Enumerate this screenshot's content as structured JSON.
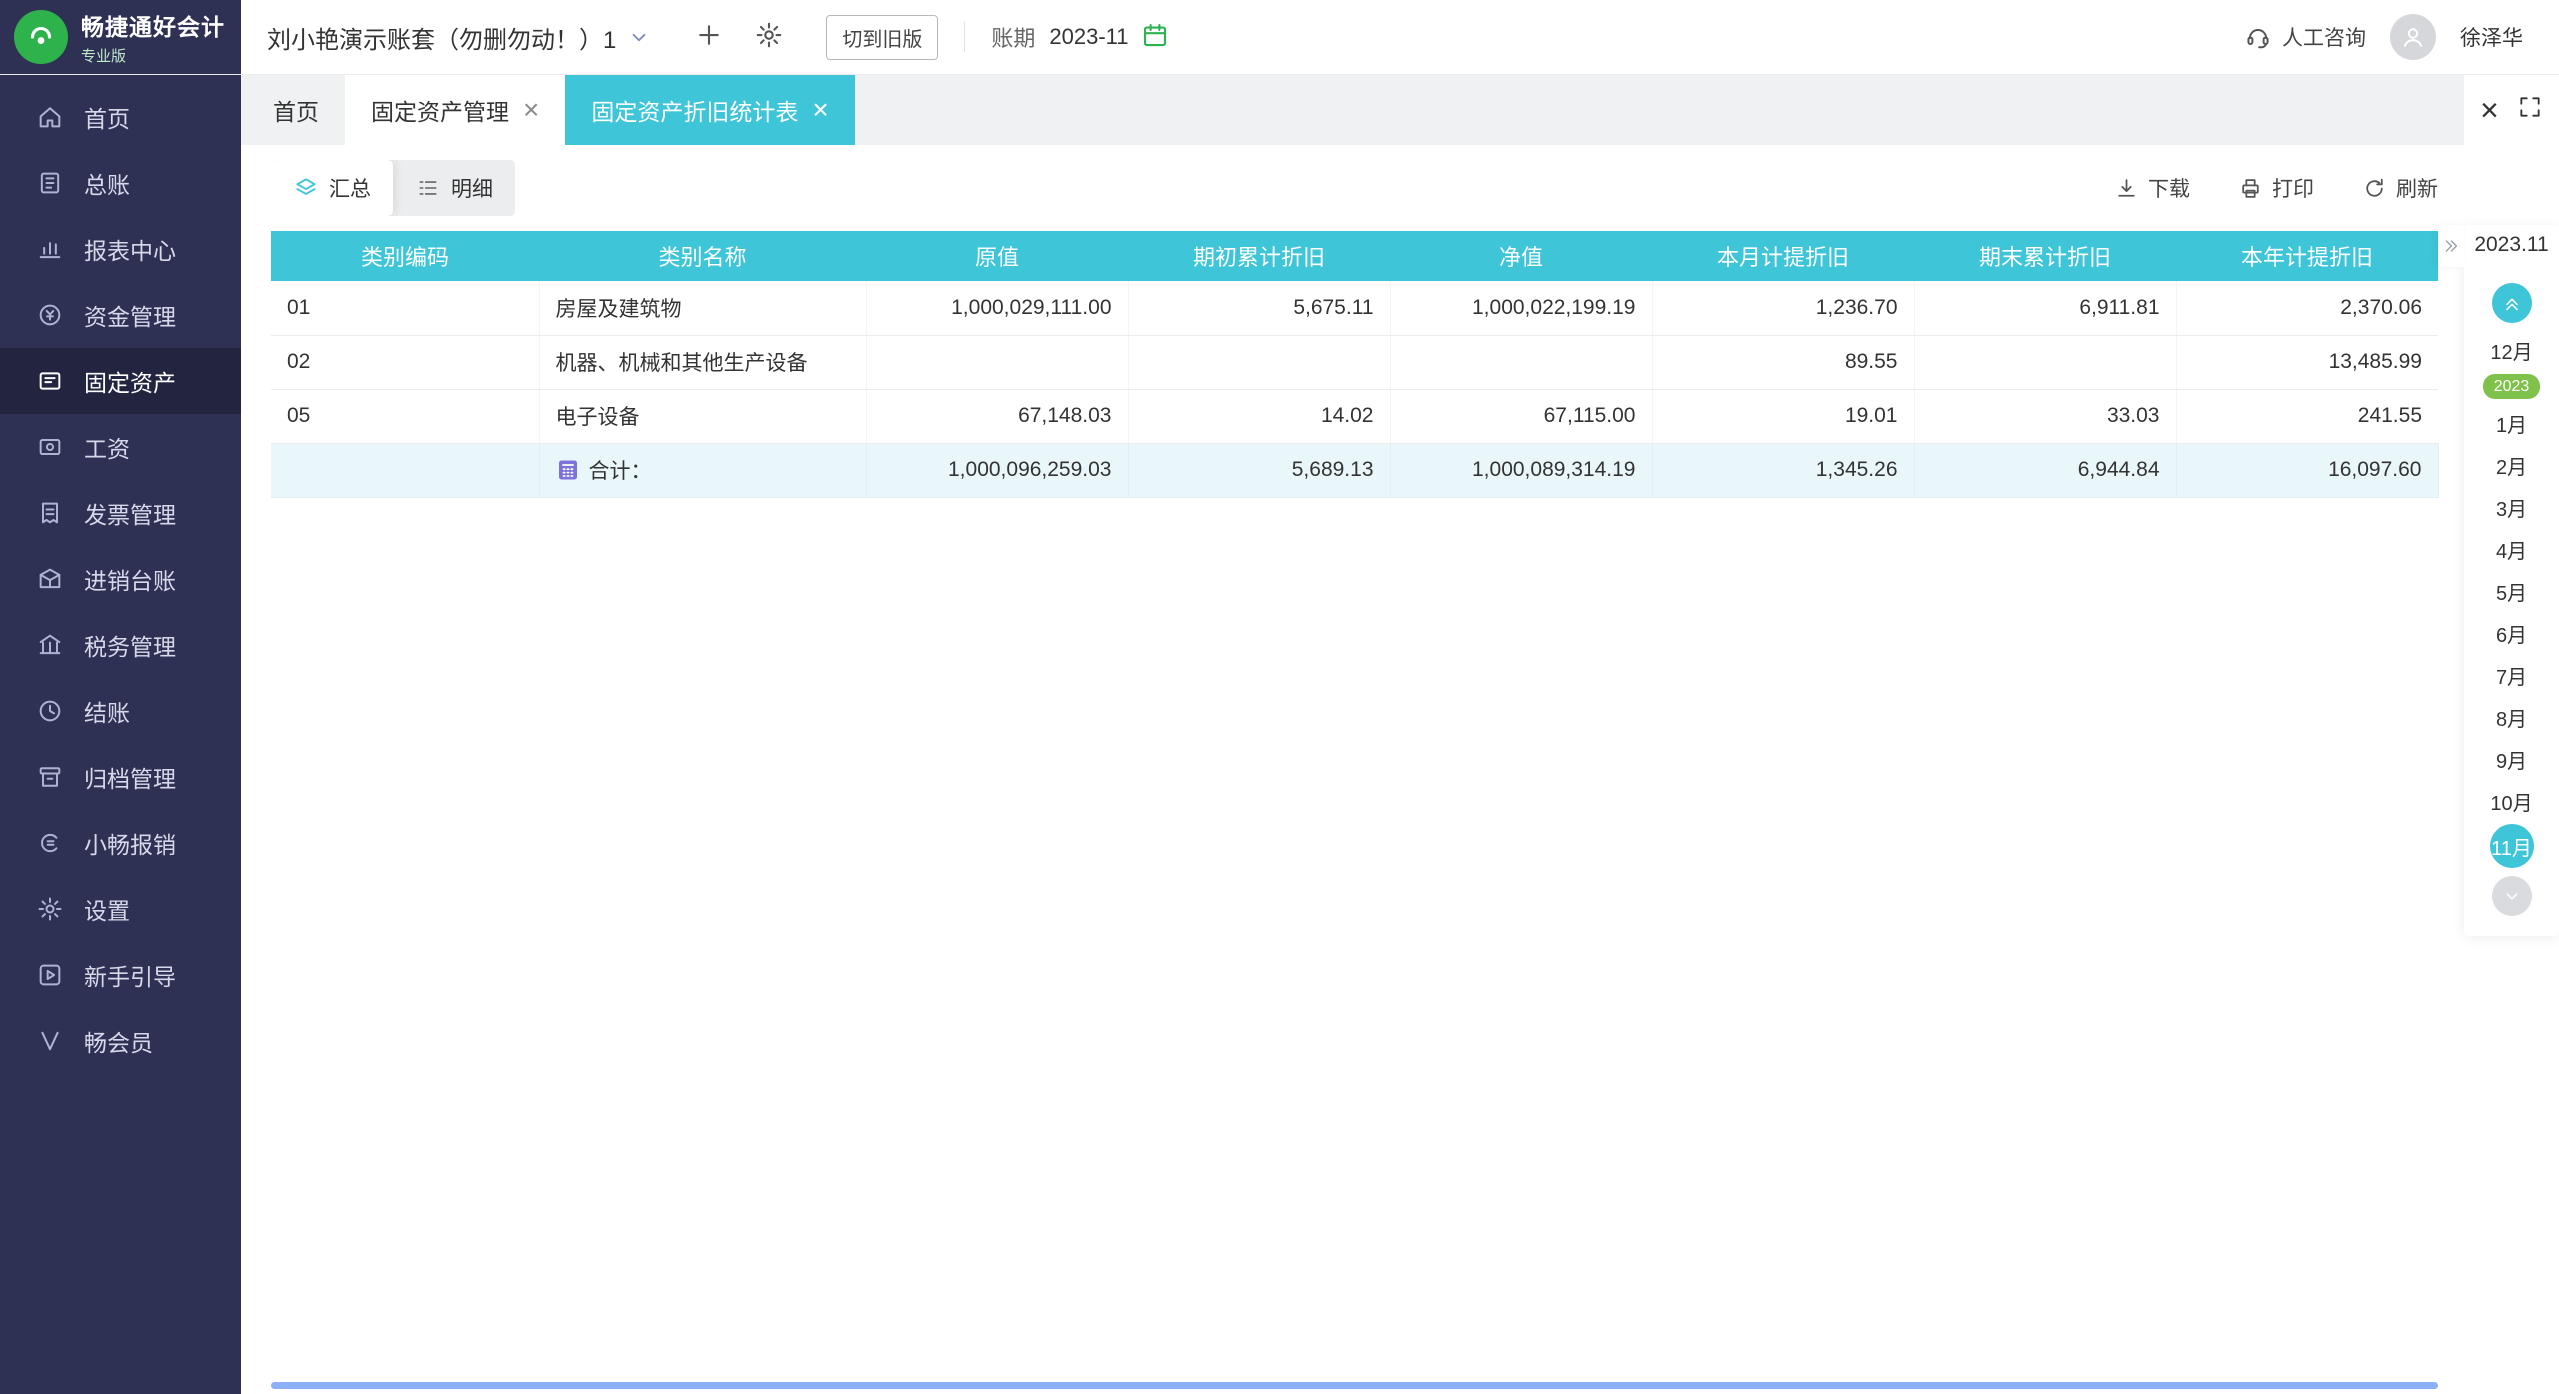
{
  "colors": {
    "accent": "#3EC5D8",
    "sidebar-bg": "#2F3154",
    "sidebar-active": "#232440",
    "logo-green": "#2EB24C",
    "year-badge": "#7EC14B",
    "total-bg": "#E9F6FA",
    "tabbar-bg": "#F0F1F3",
    "scrollbar-blue": "#6F9BF4",
    "calc-purple": "#7D72DB"
  },
  "topbar": {
    "logo_title": "畅捷通好会计",
    "logo_subtitle": "专业版",
    "account_selector": "刘小艳演示账套（勿删勿动！）1",
    "switch_version_button": "切到旧版",
    "period_label": "账期",
    "period_value": "2023-11",
    "support_label": "人工咨询",
    "user_name": "徐泽华"
  },
  "sidebar": {
    "items": [
      {
        "id": "home",
        "label": "首页",
        "icon": "home-icon",
        "active": false
      },
      {
        "id": "general-ledger",
        "label": "总账",
        "icon": "general-ledger-icon",
        "active": false
      },
      {
        "id": "report-center",
        "label": "报表中心",
        "icon": "report-center-icon",
        "active": false
      },
      {
        "id": "funds",
        "label": "资金管理",
        "icon": "funds-icon",
        "active": false
      },
      {
        "id": "fixed-assets",
        "label": "固定资产",
        "icon": "fixed-assets-icon",
        "active": true
      },
      {
        "id": "payroll",
        "label": "工资",
        "icon": "payroll-icon",
        "active": false
      },
      {
        "id": "invoice",
        "label": "发票管理",
        "icon": "invoice-icon",
        "active": false
      },
      {
        "id": "purchase-sales",
        "label": "进销台账",
        "icon": "purchase-sales-icon",
        "active": false
      },
      {
        "id": "tax",
        "label": "税务管理",
        "icon": "tax-icon",
        "active": false
      },
      {
        "id": "closing",
        "label": "结账",
        "icon": "closing-icon",
        "active": false
      },
      {
        "id": "archive",
        "label": "归档管理",
        "icon": "archive-icon",
        "active": false
      },
      {
        "id": "expense",
        "label": "小畅报销",
        "icon": "expense-icon",
        "active": false
      },
      {
        "id": "settings",
        "label": "设置",
        "icon": "settings-icon",
        "active": false
      },
      {
        "id": "guide",
        "label": "新手引导",
        "icon": "guide-icon",
        "active": false
      },
      {
        "id": "member",
        "label": "畅会员",
        "icon": "member-icon",
        "active": false
      }
    ]
  },
  "tabs": [
    {
      "label": "首页",
      "closable": false,
      "active": false
    },
    {
      "label": "固定资产管理",
      "closable": true,
      "active": false
    },
    {
      "label": "固定资产折旧统计表",
      "closable": true,
      "active": true
    }
  ],
  "toolbar": {
    "view_summary": "汇总",
    "view_detail": "明细",
    "download": "下载",
    "print": "打印",
    "refresh": "刷新"
  },
  "table": {
    "columns": [
      "类别编码",
      "类别名称",
      "原值",
      "期初累计折旧",
      "净值",
      "本月计提折旧",
      "期末累计折旧",
      "本年计提折旧"
    ],
    "rows": [
      {
        "code": "01",
        "name": "房屋及建筑物",
        "values": [
          "1,000,029,111.00",
          "5,675.11",
          "1,000,022,199.19",
          "1,236.70",
          "6,911.81",
          "2,370.06"
        ]
      },
      {
        "code": "02",
        "name": "机器、机械和其他生产设备",
        "values": [
          "",
          "",
          "",
          "89.55",
          "",
          "13,485.99"
        ]
      },
      {
        "code": "05",
        "name": "电子设备",
        "values": [
          "67,148.03",
          "14.02",
          "67,115.00",
          "19.01",
          "33.03",
          "241.55"
        ]
      }
    ],
    "total": {
      "label": "合计：",
      "values": [
        "1,000,096,259.03",
        "5,689.13",
        "1,000,089,314.19",
        "1,345.26",
        "6,944.84",
        "16,097.60"
      ]
    }
  },
  "month_panel": {
    "current_period": "2023.11",
    "prev_month": "12月",
    "year_badge": "2023",
    "months": [
      "1月",
      "2月",
      "3月",
      "4月",
      "5月",
      "6月",
      "7月",
      "8月",
      "9月",
      "10月",
      "11月"
    ],
    "active_month": "11月"
  }
}
